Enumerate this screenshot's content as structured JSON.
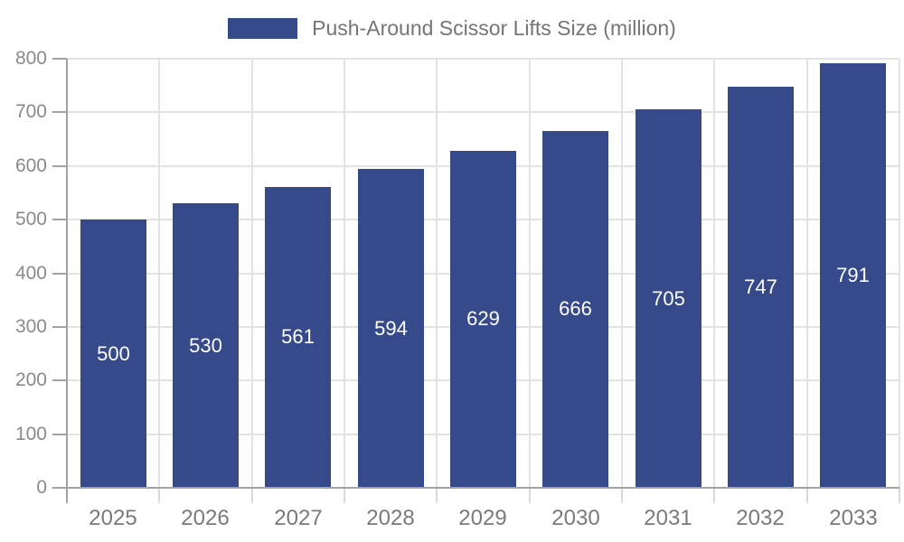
{
  "chart_data": {
    "type": "bar",
    "title": "Push-Around Scissor Lifts Size (million)",
    "series": [
      {
        "name": "Push-Around Scissor Lifts Size (million)",
        "values": [
          500,
          530,
          561,
          594,
          629,
          666,
          705,
          747,
          791
        ]
      }
    ],
    "categories": [
      "2025",
      "2026",
      "2027",
      "2028",
      "2029",
      "2030",
      "2031",
      "2032",
      "2033"
    ],
    "xlabel": "",
    "ylabel": "",
    "ylim": [
      0,
      800
    ],
    "ytick_step": 100,
    "ytick_labels": [
      "0",
      "100",
      "200",
      "300",
      "400",
      "500",
      "600",
      "700",
      "800"
    ],
    "grid": true,
    "legend_position": "top-center",
    "value_labels_position": "inside-center",
    "colors": {
      "bar": "#36498B",
      "grid": "#E3E3E3",
      "axis": "#A3A3A3",
      "tick": "#D9D9D9",
      "y_tick_label": "#8A8A8A",
      "x_tick_label": "#7A7A7A",
      "legend_text": "#757575",
      "value_label": "#FFFFFF",
      "background": "#FFFFFF"
    }
  }
}
